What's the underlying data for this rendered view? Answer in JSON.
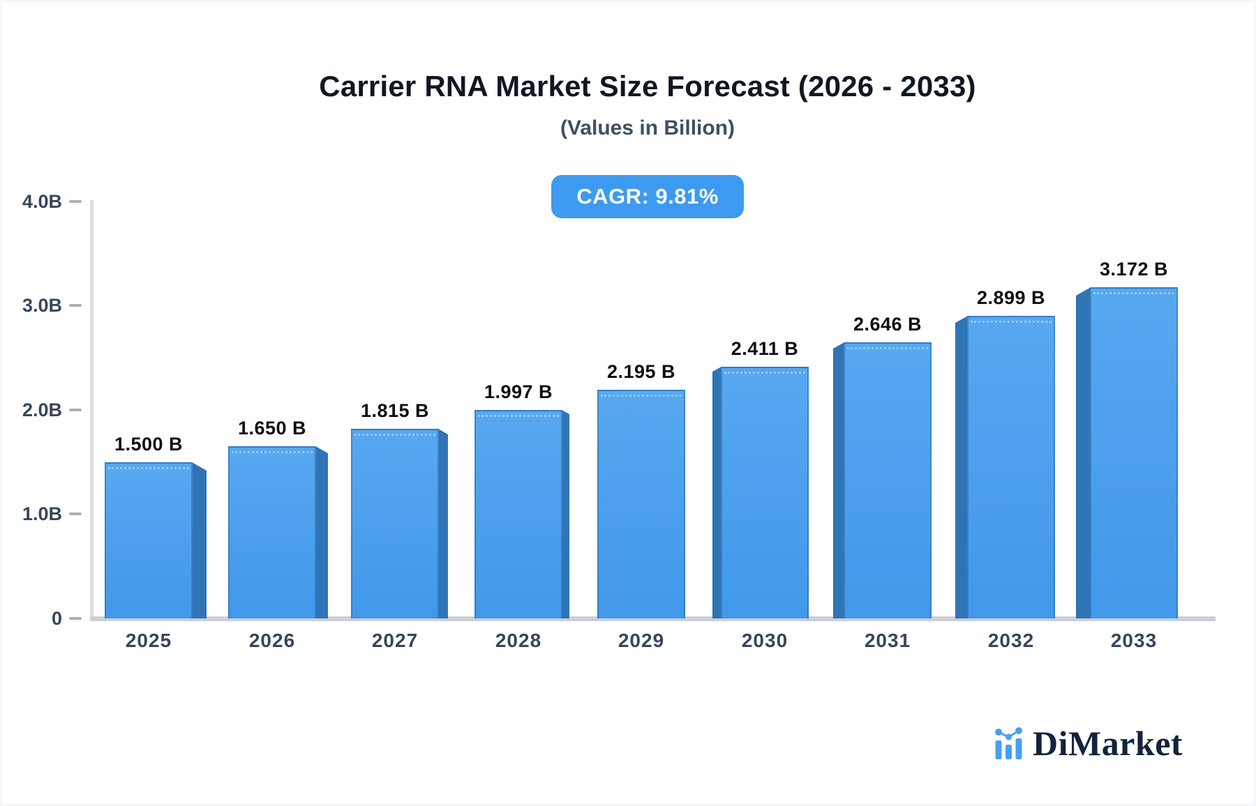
{
  "chart_data": {
    "type": "bar",
    "title": "Carrier RNA Market Size Forecast (2026 - 2033)",
    "subtitle": "(Values in Billion)",
    "cagr_text": "CAGR: 9.81%",
    "cagr_badge_color": "#3d9af1",
    "unit": "Billion",
    "categories": [
      "2025",
      "2026",
      "2027",
      "2028",
      "2029",
      "2030",
      "2031",
      "2032",
      "2033"
    ],
    "values": [
      1.5,
      1.65,
      1.815,
      1.997,
      2.195,
      2.411,
      2.646,
      2.899,
      3.172
    ],
    "value_labels": [
      "1.500 B",
      "1.650 B",
      "1.815 B",
      "1.997 B",
      "2.195 B",
      "2.411 B",
      "2.646 B",
      "2.899 B",
      "3.172 B"
    ],
    "y_axis": {
      "range": [
        0,
        4.0
      ],
      "ticks": [
        {
          "label": "4.0B",
          "value": 4.0
        },
        {
          "label": "3.0B",
          "value": 3.0
        },
        {
          "label": "2.0B",
          "value": 2.0
        },
        {
          "label": "1.0B",
          "value": 1.0
        },
        {
          "label": "0",
          "value": 0
        }
      ]
    },
    "grid": false,
    "legend": false,
    "bar_color_top": "#57a8f0",
    "bar_color_bottom": "#4198ea",
    "bar_side_color": "#2f74b5",
    "style": "3d-perspective"
  },
  "branding": {
    "logo_text": "DiMarket",
    "logo_icon": "bar-chart-icon",
    "logo_text_color": "#13233e",
    "logo_icon_color": "#47a0f3"
  }
}
